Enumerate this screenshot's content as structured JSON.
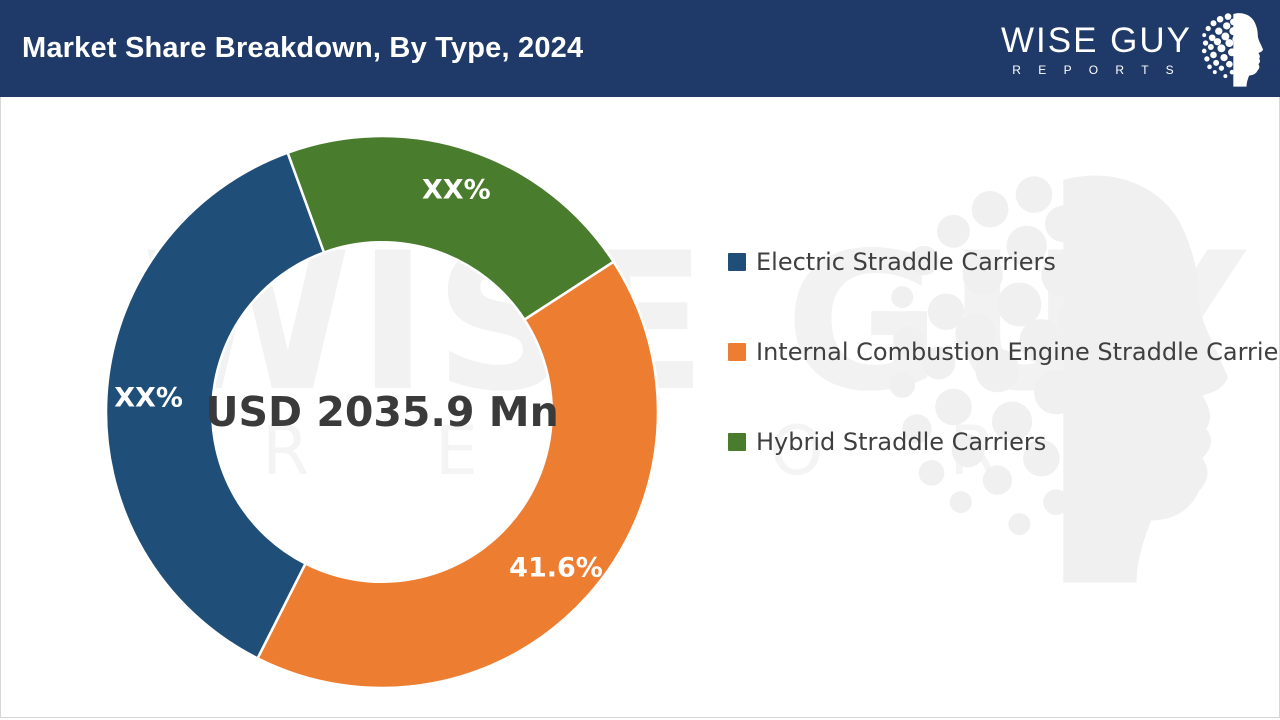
{
  "header": {
    "title": "Market Share Breakdown, By Type, 2024",
    "logo_line1": "WISE GUY",
    "logo_line2": "R E P O R T S"
  },
  "watermark": {
    "line1": "WISE GUY",
    "line2": "R E P O R T S"
  },
  "chart_data": {
    "type": "donut",
    "title": "Market Share Breakdown, By Type, 2024",
    "center_label": "USD 2035.9 Mn",
    "start_angle_deg": -20,
    "legend_position": "right",
    "inner_radius_ratio": 0.615,
    "slices": [
      {
        "label": "Electric Straddle Carriers",
        "value_pct": 37.0,
        "display_label": "XX%",
        "color": "#1f4e79"
      },
      {
        "label": "Internal Combustion Engine Straddle Carriers",
        "value_pct": 41.6,
        "display_label": "41.6%",
        "color": "#ed7d31"
      },
      {
        "label": "Hybrid Straddle Carriers",
        "value_pct": 21.4,
        "display_label": "XX%",
        "color": "#4a7c2d"
      }
    ]
  },
  "colors": {
    "header_bg": "#1f3a68",
    "center_text": "#3a3a3a",
    "slice_label_text": "#ffffff",
    "legend_text": "#3f3f3f",
    "watermark": "#f2f2f2",
    "frame_border": "#d6d6d6"
  }
}
